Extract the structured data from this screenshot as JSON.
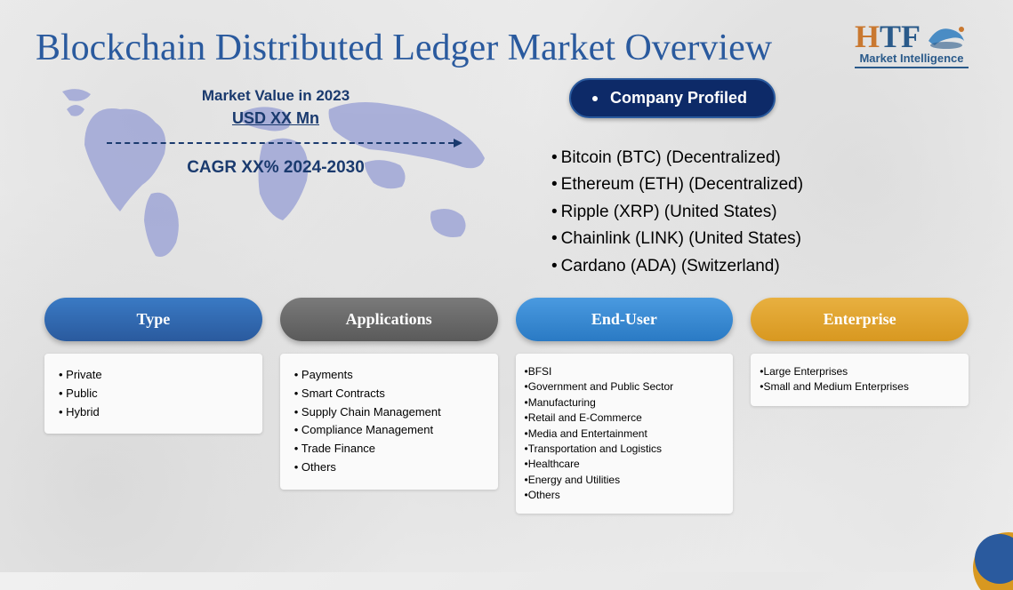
{
  "title": {
    "text": "Blockchain Distributed Ledger Market Overview",
    "color": "#2a5a9e",
    "fontsize": 42
  },
  "logo": {
    "htf_text": "HTF",
    "htf_color": "#2a5a8a",
    "htf_h_color": "#c97830",
    "sub_text": "Market Intelligence",
    "dolphin_color": "#4a8cc4",
    "mark_accent": "#c97830"
  },
  "map": {
    "market_value_label": "Market Value in 2023",
    "usd_value": "USD XX Mn",
    "cagr_text": "CAGR XX% 2024-2030",
    "text_color": "#1a3a6e",
    "map_color": "#9fa6d6",
    "arrow_color": "#1a3a6e"
  },
  "company_profiled": {
    "pill_label": "Company Profiled",
    "pill_bg": "#0d2a68",
    "pill_border": "#2a5a9e",
    "pill_text_color": "#ffffff",
    "items": [
      "Bitcoin (BTC) (Decentralized)",
      "Ethereum (ETH) (Decentralized)",
      "Ripple (XRP) (United States)",
      "Chainlink (LINK)  (United States)",
      "Cardano (ADA) (Switzerland)"
    ]
  },
  "segments": [
    {
      "label": "Type",
      "pill_bg": "linear-gradient(180deg, #3a7ac4 0%, #2a5a9e 100%)",
      "pill_text_color": "#ffffff",
      "items": [
        "Private",
        "Public",
        "Hybrid"
      ],
      "bullet_style": "spaced"
    },
    {
      "label": "Applications",
      "pill_bg": "linear-gradient(180deg, #7a7a7a 0%, #5a5a5a 100%)",
      "pill_text_color": "#ffffff",
      "items": [
        "Payments",
        "Smart Contracts",
        "Supply Chain Management",
        "Compliance Management",
        "Trade Finance",
        "Others"
      ],
      "bullet_style": "spaced"
    },
    {
      "label": "End-User",
      "pill_bg": "linear-gradient(180deg, #4a9ae0 0%, #2a7ac4 100%)",
      "pill_text_color": "#ffffff",
      "items": [
        "BFSI",
        "Government and Public Sector",
        "Manufacturing",
        "Retail and E-Commerce",
        "Media and Entertainment",
        "Transportation and Logistics",
        "Healthcare",
        "Energy and Utilities",
        "Others"
      ],
      "bullet_style": "tight"
    },
    {
      "label": "Enterprise",
      "pill_bg": "linear-gradient(180deg, #e8b040 0%, #d89820 100%)",
      "pill_text_color": "#ffffff",
      "items": [
        "Large Enterprises",
        "Small and Medium Enterprises"
      ],
      "bullet_style": "tight"
    }
  ],
  "corner_deco": {
    "inner_color": "#2a5a9e",
    "outer_color": "#d89820"
  }
}
